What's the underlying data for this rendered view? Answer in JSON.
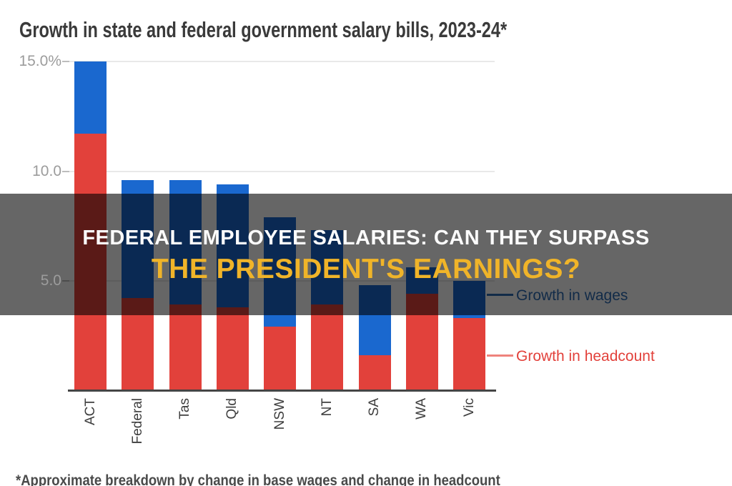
{
  "title": "Growth in state and federal government salary bills, 2023-24*",
  "footnote": "*Approximate breakdown by change in base wages and change in headcount",
  "banner": {
    "line1": "FEDERAL EMPLOYEE SALARIES: CAN THEY SURPASS",
    "line2": "THE PRESIDENT'S EARNINGS?",
    "line1_color": "#fcfcfc",
    "line2_color": "#f0b429",
    "overlay_color": "rgba(0,0,0,0.60)"
  },
  "legend": {
    "wages_label": "Growth in wages",
    "headcount_label": "Growth in headcount"
  },
  "colors": {
    "wages_blue": "#1a68cf",
    "headcount_red": "#e2413b",
    "wages_legend": "#2f6cb5",
    "headcount_legend_line": "#ef837c"
  },
  "chart_data": {
    "type": "bar",
    "stacked": true,
    "title": "Growth in state and federal government salary bills, 2023-24*",
    "unit": "%",
    "categories": [
      "ACT",
      "Federal",
      "Tas",
      "Qld",
      "NSW",
      "NT",
      "SA",
      "WA",
      "Vic"
    ],
    "series": [
      {
        "name": "Growth in headcount",
        "color": "#e2413b",
        "values": [
          11.7,
          4.2,
          3.9,
          3.8,
          2.9,
          3.9,
          1.6,
          4.4,
          3.3
        ]
      },
      {
        "name": "Growth in wages",
        "color": "#1a68cf",
        "values": [
          3.3,
          5.4,
          5.7,
          5.6,
          5.0,
          3.4,
          3.2,
          1.2,
          1.7
        ]
      }
    ],
    "totals": [
      15.0,
      9.6,
      9.6,
      9.4,
      7.9,
      7.3,
      4.8,
      5.6,
      5.0
    ],
    "ylim": [
      0,
      15
    ],
    "y_tick_values": [
      15,
      10,
      5
    ],
    "y_tick_labels": [
      "15.0%",
      "10.0",
      "5.0"
    ],
    "grid": true,
    "legend_position": "right",
    "xlabel": "",
    "ylabel": ""
  }
}
